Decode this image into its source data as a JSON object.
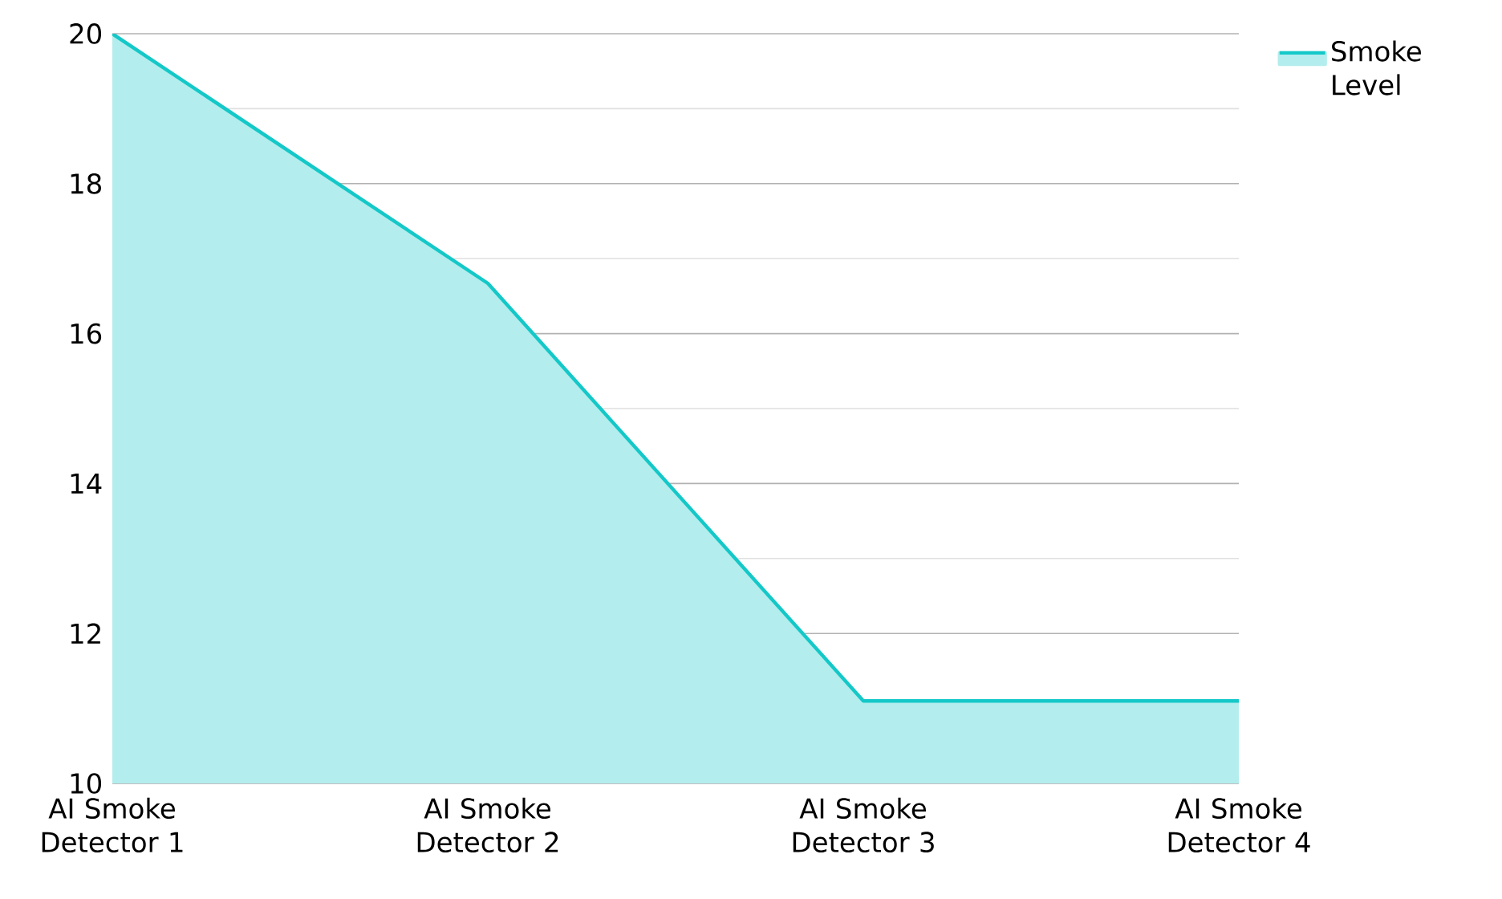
{
  "chart_data": {
    "type": "area",
    "categories": [
      "AI Smoke Detector 1",
      "AI Smoke Detector 2",
      "AI Smoke Detector 3",
      "AI Smoke Detector 4"
    ],
    "series": [
      {
        "name": "Smoke Level",
        "color": "#14c8c8",
        "values": [
          20,
          16.67,
          11.1,
          11.1
        ]
      }
    ],
    "ylim": [
      10,
      20
    ],
    "yticks": [
      10,
      12,
      14,
      16,
      18,
      20
    ],
    "grid": "y",
    "legend": "top right"
  }
}
